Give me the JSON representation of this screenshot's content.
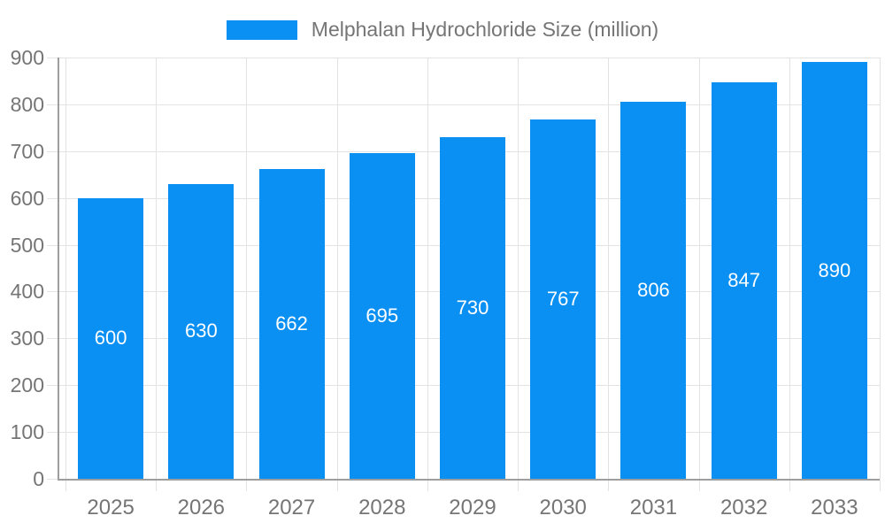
{
  "legend": {
    "label": "Melphalan Hydrochloride Size (million)"
  },
  "colors": {
    "bar": "#0A8FF2",
    "bar_label_text": "#ffffff",
    "axis_line": "#9e9e9e",
    "gridline": "#e3e3e3",
    "tick_text": "#757575"
  },
  "chart_data": {
    "type": "bar",
    "title": "Melphalan Hydrochloride Size (million)",
    "series_name": "Melphalan Hydrochloride Size (million)",
    "categories": [
      "2025",
      "2026",
      "2027",
      "2028",
      "2029",
      "2030",
      "2031",
      "2032",
      "2033"
    ],
    "values": [
      600,
      630,
      662,
      695,
      730,
      767,
      806,
      847,
      890
    ],
    "data_labels": [
      "600",
      "630",
      "662",
      "695",
      "730",
      "767",
      "806",
      "847",
      "890"
    ],
    "xlabel": "",
    "ylabel": "",
    "ylim": [
      0,
      900
    ],
    "ytick_interval": 100,
    "yticks": [
      0,
      100,
      200,
      300,
      400,
      500,
      600,
      700,
      800,
      900
    ],
    "grid": true,
    "legend_position": "top",
    "bar_color": "#0A8FF2"
  }
}
